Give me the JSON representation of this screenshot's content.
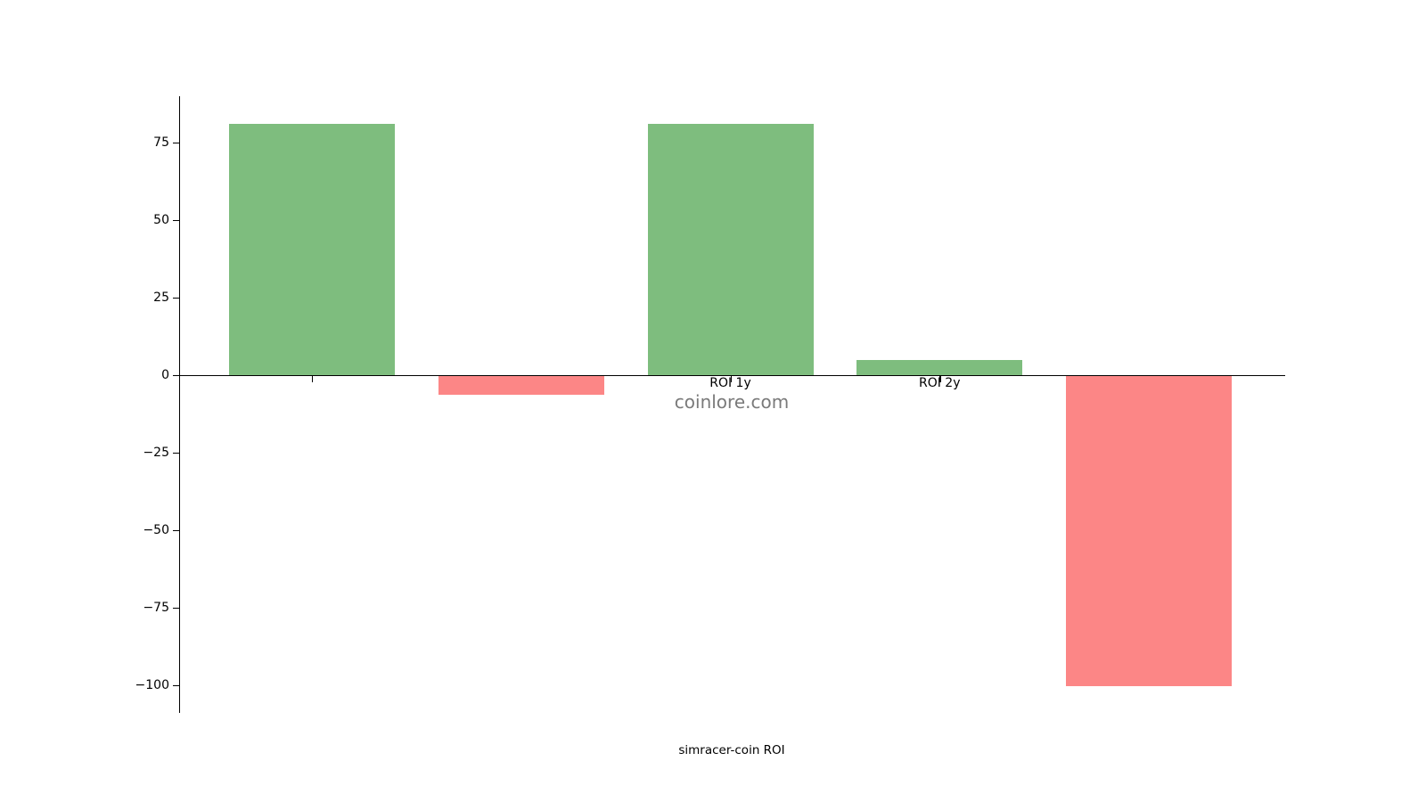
{
  "watermark": {
    "text": "coinlore.com",
    "color": "#7a7a7a"
  },
  "chart_data": {
    "type": "bar",
    "title": "simracer-coin ROI",
    "xlabel": "simracer-coin ROI",
    "ylabel": "",
    "categories": [
      "",
      "",
      "ROI 1y",
      "ROI 2y",
      ""
    ],
    "values": [
      81,
      -6,
      81,
      5,
      -100
    ],
    "bar_colors": [
      "#7ebd7e",
      "#fc8686",
      "#7ebd7e",
      "#7ebd7e",
      "#fc8686"
    ],
    "positive_color": "#7ebd7e",
    "negative_color": "#fc8686",
    "ylim": [
      -109,
      90
    ],
    "yticks": [
      75,
      50,
      25,
      0,
      -25,
      -50,
      -75,
      -100
    ],
    "ytick_labels": [
      "75",
      "50",
      "25",
      "0",
      "−25",
      "−50",
      "−75",
      "−100"
    ],
    "xtick_indices": [
      0,
      2,
      3
    ],
    "grid": false,
    "legend": null,
    "watermark": "coinlore.com"
  }
}
